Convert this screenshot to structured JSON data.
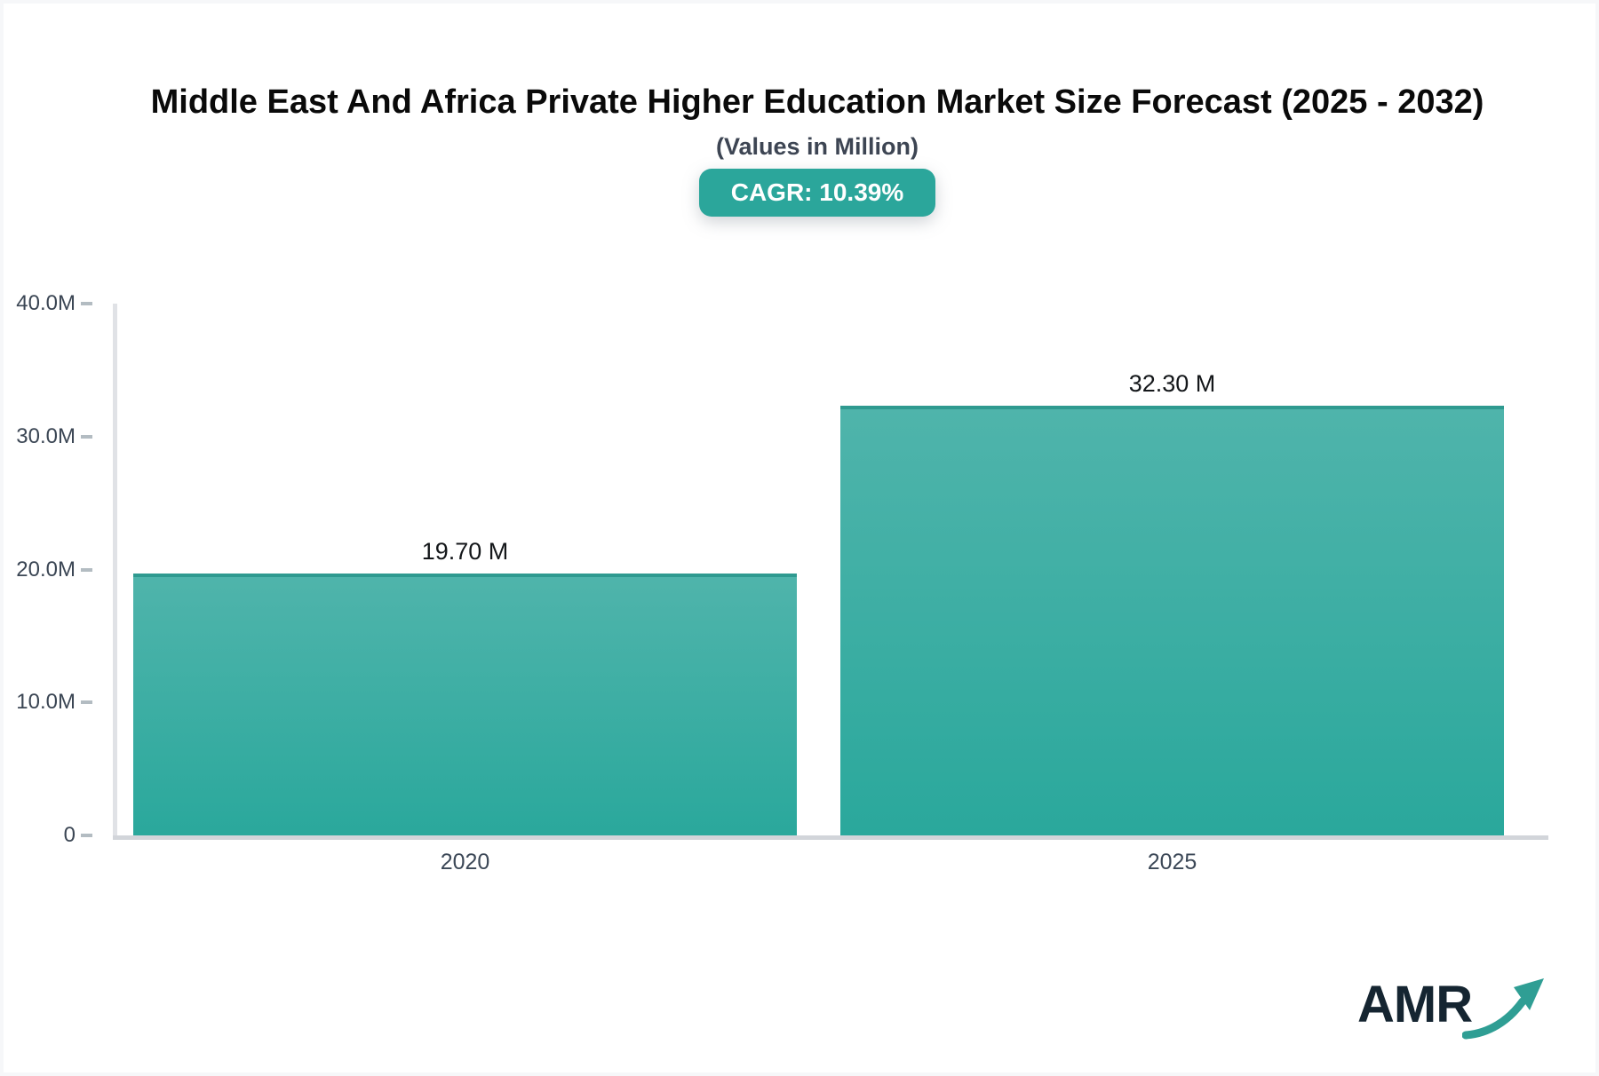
{
  "page": {
    "background": "#ffffff",
    "edge_color": "#f6f7f9"
  },
  "header": {
    "title": "Middle East And Africa Private Higher Education Market Size Forecast (2025 - 2032)",
    "subtitle": "(Values in Million)",
    "cagr_badge": "CAGR: 10.39%",
    "badge_color": "#2ba69b"
  },
  "chart_data": {
    "type": "bar",
    "title": "Middle East And Africa Private Higher Education Market Size Forecast (2025 - 2032)",
    "subtitle": "(Values in Million)",
    "cagr_percent": 10.39,
    "categories": [
      "2020",
      "2025"
    ],
    "values": [
      19.7,
      32.3
    ],
    "value_labels": [
      "19.70 M",
      "32.30 M"
    ],
    "unit": "Million",
    "xlabel": "",
    "ylabel": "",
    "ylim": [
      0,
      40
    ],
    "yticks": [
      {
        "label": "40.0M",
        "value": 40
      },
      {
        "label": "30.0M",
        "value": 30
      },
      {
        "label": "20.0M",
        "value": 20
      },
      {
        "label": "10.0M",
        "value": 10
      },
      {
        "label": "0",
        "value": 0
      }
    ],
    "grid": false,
    "legend": "none",
    "bar_color_top": "#4fb4ab",
    "bar_color_bottom": "#2aa89c",
    "bar_edge_color": "#2f9a90",
    "axis_color": "#d2d5da",
    "tick_label_color": "#3b4654"
  },
  "logo": {
    "text": "AMR",
    "text_color": "#152531",
    "arrow_color": "#2f9e94"
  }
}
